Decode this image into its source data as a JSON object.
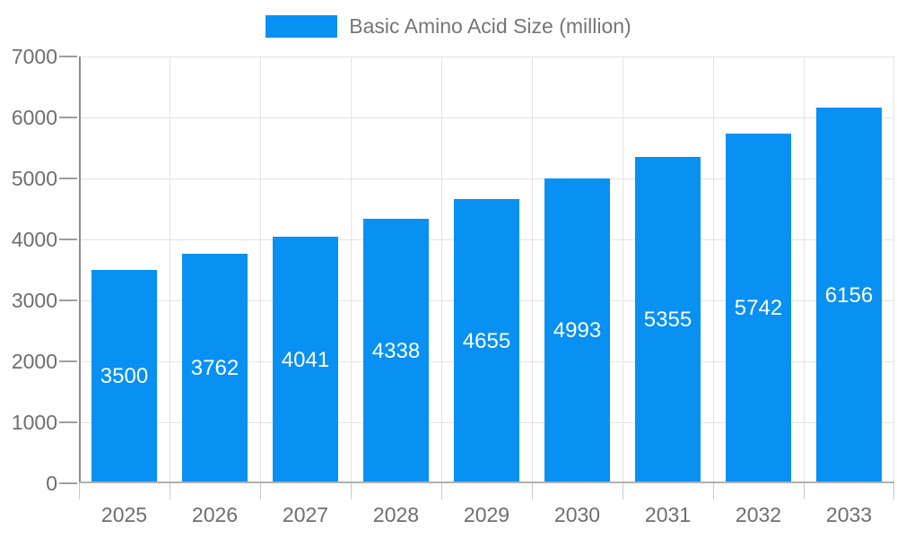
{
  "chart_data": {
    "type": "bar",
    "title": "",
    "legend": "Basic Amino Acid Size (million)",
    "legend_position": "top-center",
    "categories": [
      "2025",
      "2026",
      "2027",
      "2028",
      "2029",
      "2030",
      "2031",
      "2032",
      "2033"
    ],
    "series": [
      {
        "name": "Basic Amino Acid Size (million)",
        "color": "#0890f2",
        "values": [
          3500,
          3762,
          4041,
          4338,
          4655,
          4993,
          5355,
          5742,
          6156
        ]
      }
    ],
    "value_labels": {
      "position": "inside-center",
      "color": "#ffffff"
    },
    "xlabel": "",
    "ylabel": "",
    "ylim": [
      0,
      7000
    ],
    "yticks": [
      0,
      1000,
      2000,
      3000,
      4000,
      5000,
      6000,
      7000
    ],
    "grid": true
  },
  "colors": {
    "bar": "#0890f2",
    "grid": "#e3e3e3",
    "axis_line_y": "#8c8c8c",
    "axis_line_x": "#b0b0b0",
    "axis_text": "#6e6e6e",
    "legend_text": "#757575",
    "value_text": "#ffffff",
    "background": "#ffffff"
  }
}
